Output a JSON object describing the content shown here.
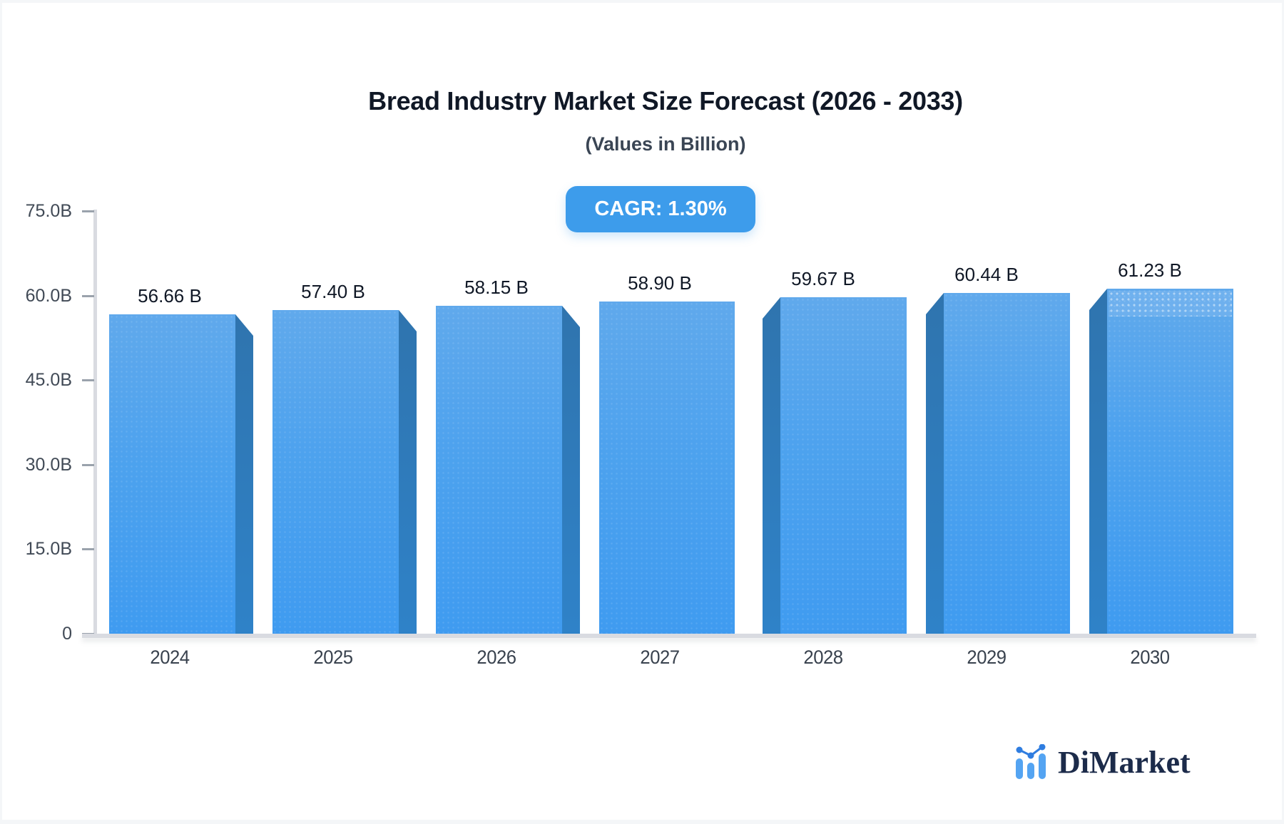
{
  "header": {
    "title": "Bread Industry Market Size Forecast (2026 - 2033)",
    "subtitle": "(Values in Billion)",
    "cagr_badge": "CAGR: 1.30%"
  },
  "chart_data": {
    "type": "bar",
    "categories": [
      "2024",
      "2025",
      "2026",
      "2027",
      "2028",
      "2029",
      "2030"
    ],
    "values": [
      56.66,
      57.4,
      58.15,
      58.9,
      59.67,
      60.44,
      61.23
    ],
    "value_labels": [
      "56.66 B",
      "57.40 B",
      "58.15 B",
      "58.90 B",
      "59.67 B",
      "60.44 B",
      "61.23 B"
    ],
    "y_ticks": [
      "75.0B",
      "60.0B",
      "45.0B",
      "30.0B",
      "15.0B",
      "0"
    ],
    "y_tick_values": [
      75,
      60,
      45,
      30,
      15,
      0
    ],
    "ylim": [
      0,
      75
    ],
    "title": "Bread Industry Market Size Forecast (2026 - 2033)",
    "xlabel": "",
    "ylabel": "",
    "grid": false,
    "legend": false,
    "bar_color_top": "#60a9ec",
    "bar_color_bottom": "#3f9bf0",
    "bar_side_color": "#2f7cba"
  },
  "branding": {
    "logo_text": "DiMarket",
    "logo_icon": "mini-bar-chart-icon",
    "logo_color": "#1c2b4a",
    "logo_accent": "#54a4f2"
  },
  "colors": {
    "badge_bg": "#3d9ceb",
    "axis_gray": "#d9dbe1",
    "text_dark": "#101826"
  }
}
